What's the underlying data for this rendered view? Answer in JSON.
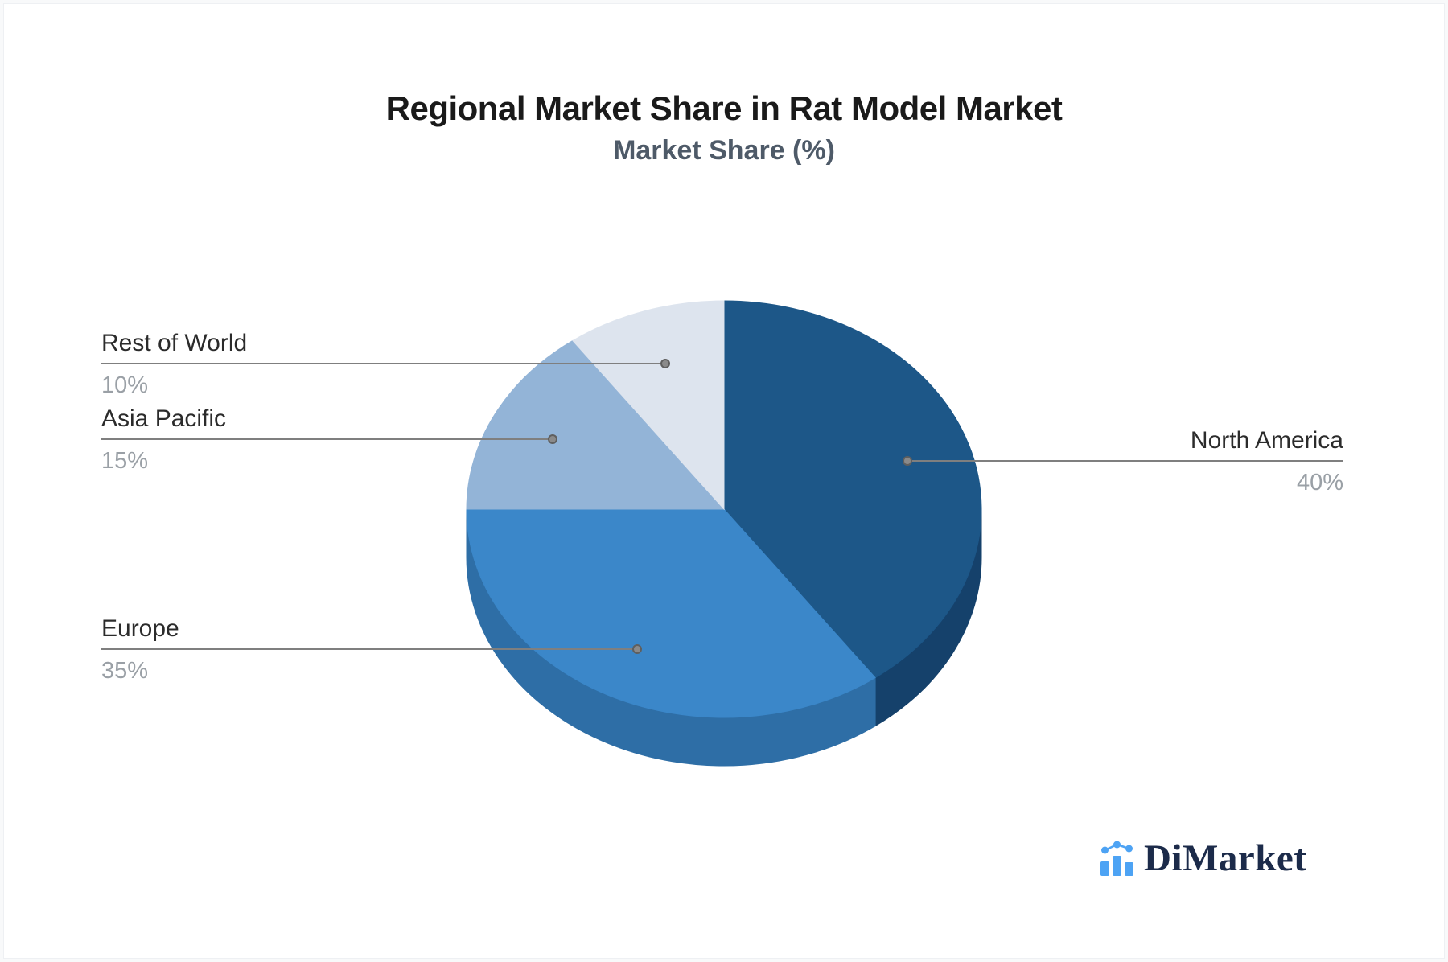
{
  "page": {
    "background": "#f8f9fa",
    "card_background": "#ffffff"
  },
  "header": {
    "title": "Regional Market Share in Rat Model Market",
    "subtitle": "Market Share (%)"
  },
  "chart_data": {
    "type": "pie",
    "title": "Regional Market Share in Rat Model Market",
    "subtitle": "Market Share (%)",
    "unit": "%",
    "effect_3d": true,
    "start_angle": "12-o-clock",
    "direction": "clockwise",
    "legend_position": "callout-labels",
    "slices": [
      {
        "label": "North America",
        "value": 40,
        "display": "40%",
        "color": "#1d5788",
        "side_color": "#15416b"
      },
      {
        "label": "Europe",
        "value": 35,
        "display": "35%",
        "color": "#3b87c9",
        "side_color": "#2e6ea6"
      },
      {
        "label": "Asia Pacific",
        "value": 15,
        "display": "15%",
        "color": "#93b4d7",
        "side_color": "#7a9cc0"
      },
      {
        "label": "Rest of World",
        "value": 10,
        "display": "10%",
        "color": "#dde4ee",
        "side_color": "#c3cddd"
      }
    ],
    "callout_line_color": "#7f7f7f",
    "label_color": "#2b2b2b",
    "percent_color": "#9aa0a6"
  },
  "branding": {
    "logo_text": "DiMarket",
    "logo_icon": "bar-and-line-mini-chart-icon",
    "logo_icon_color": "#4da3f4",
    "logo_text_color": "#1c2b4a"
  }
}
